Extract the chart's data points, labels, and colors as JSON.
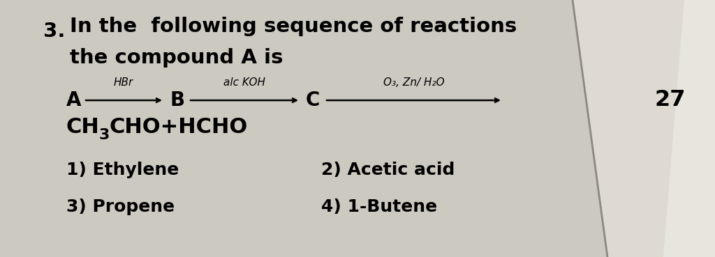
{
  "bg_color": "#c8c4bc",
  "right_bg_color": "#e8e6e0",
  "title_line1": "In the  following sequence of reactions",
  "title_line2": "the compound A is",
  "question_number": "3.",
  "reaction_A": "A",
  "reaction_B": "B",
  "reaction_C": "C",
  "arrow1_label": "HBr",
  "arrow2_label": "alc KOH",
  "arrow3_label": "O₃, Zn/ H₂O",
  "product_text1": "CH",
  "product_sub": "3",
  "product_text2": "CHO+HCHO",
  "option1": "1) Ethylene",
  "option2": "2) Acetic acid",
  "option3": "3) Propene",
  "option4": "4) 1-Butene",
  "page_number": "27",
  "title_fontsize": 21,
  "reaction_fontsize": 20,
  "small_label_fontsize": 11,
  "option_fontsize": 18,
  "product_fontsize": 22
}
